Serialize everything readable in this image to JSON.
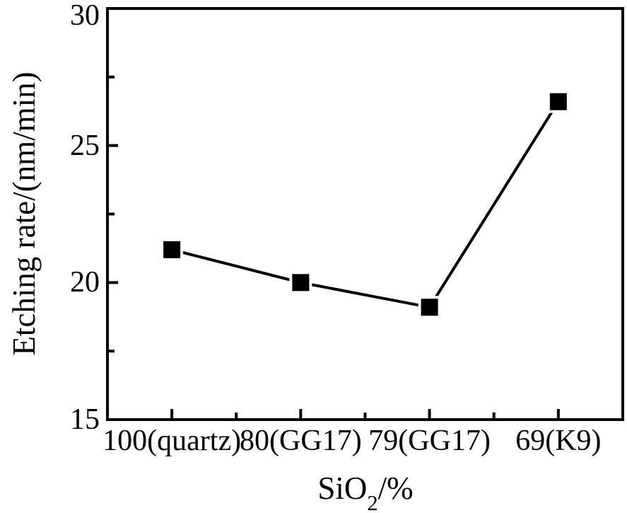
{
  "figure": {
    "background_color": "#ffffff",
    "ink_color": "#000000"
  },
  "chart_data": {
    "type": "line",
    "title": "",
    "categories": [
      "100(quartz)",
      "80(GG17)",
      "79(GG17)",
      "69(K9)"
    ],
    "series": [
      {
        "name": "Etching rate",
        "values": [
          21.2,
          20.0,
          19.1,
          26.6
        ]
      }
    ],
    "xlabel": {
      "main": "SiO",
      "sub": "2",
      "suffix": "/%"
    },
    "ylabel": "Etching rate/(nm/min)",
    "ylim": [
      15,
      30
    ],
    "yticks_major": [
      15,
      20,
      25,
      30
    ],
    "yticks_minor": [
      17.5,
      22.5,
      27.5
    ],
    "x_minor_ticks_between_categories": true,
    "grid": "off",
    "legend": "none",
    "marker": "filled-square",
    "marker_color": "#000000",
    "marker_outline_color": "#ffffff",
    "line_color": "#000000",
    "axis_color": "#000000"
  }
}
